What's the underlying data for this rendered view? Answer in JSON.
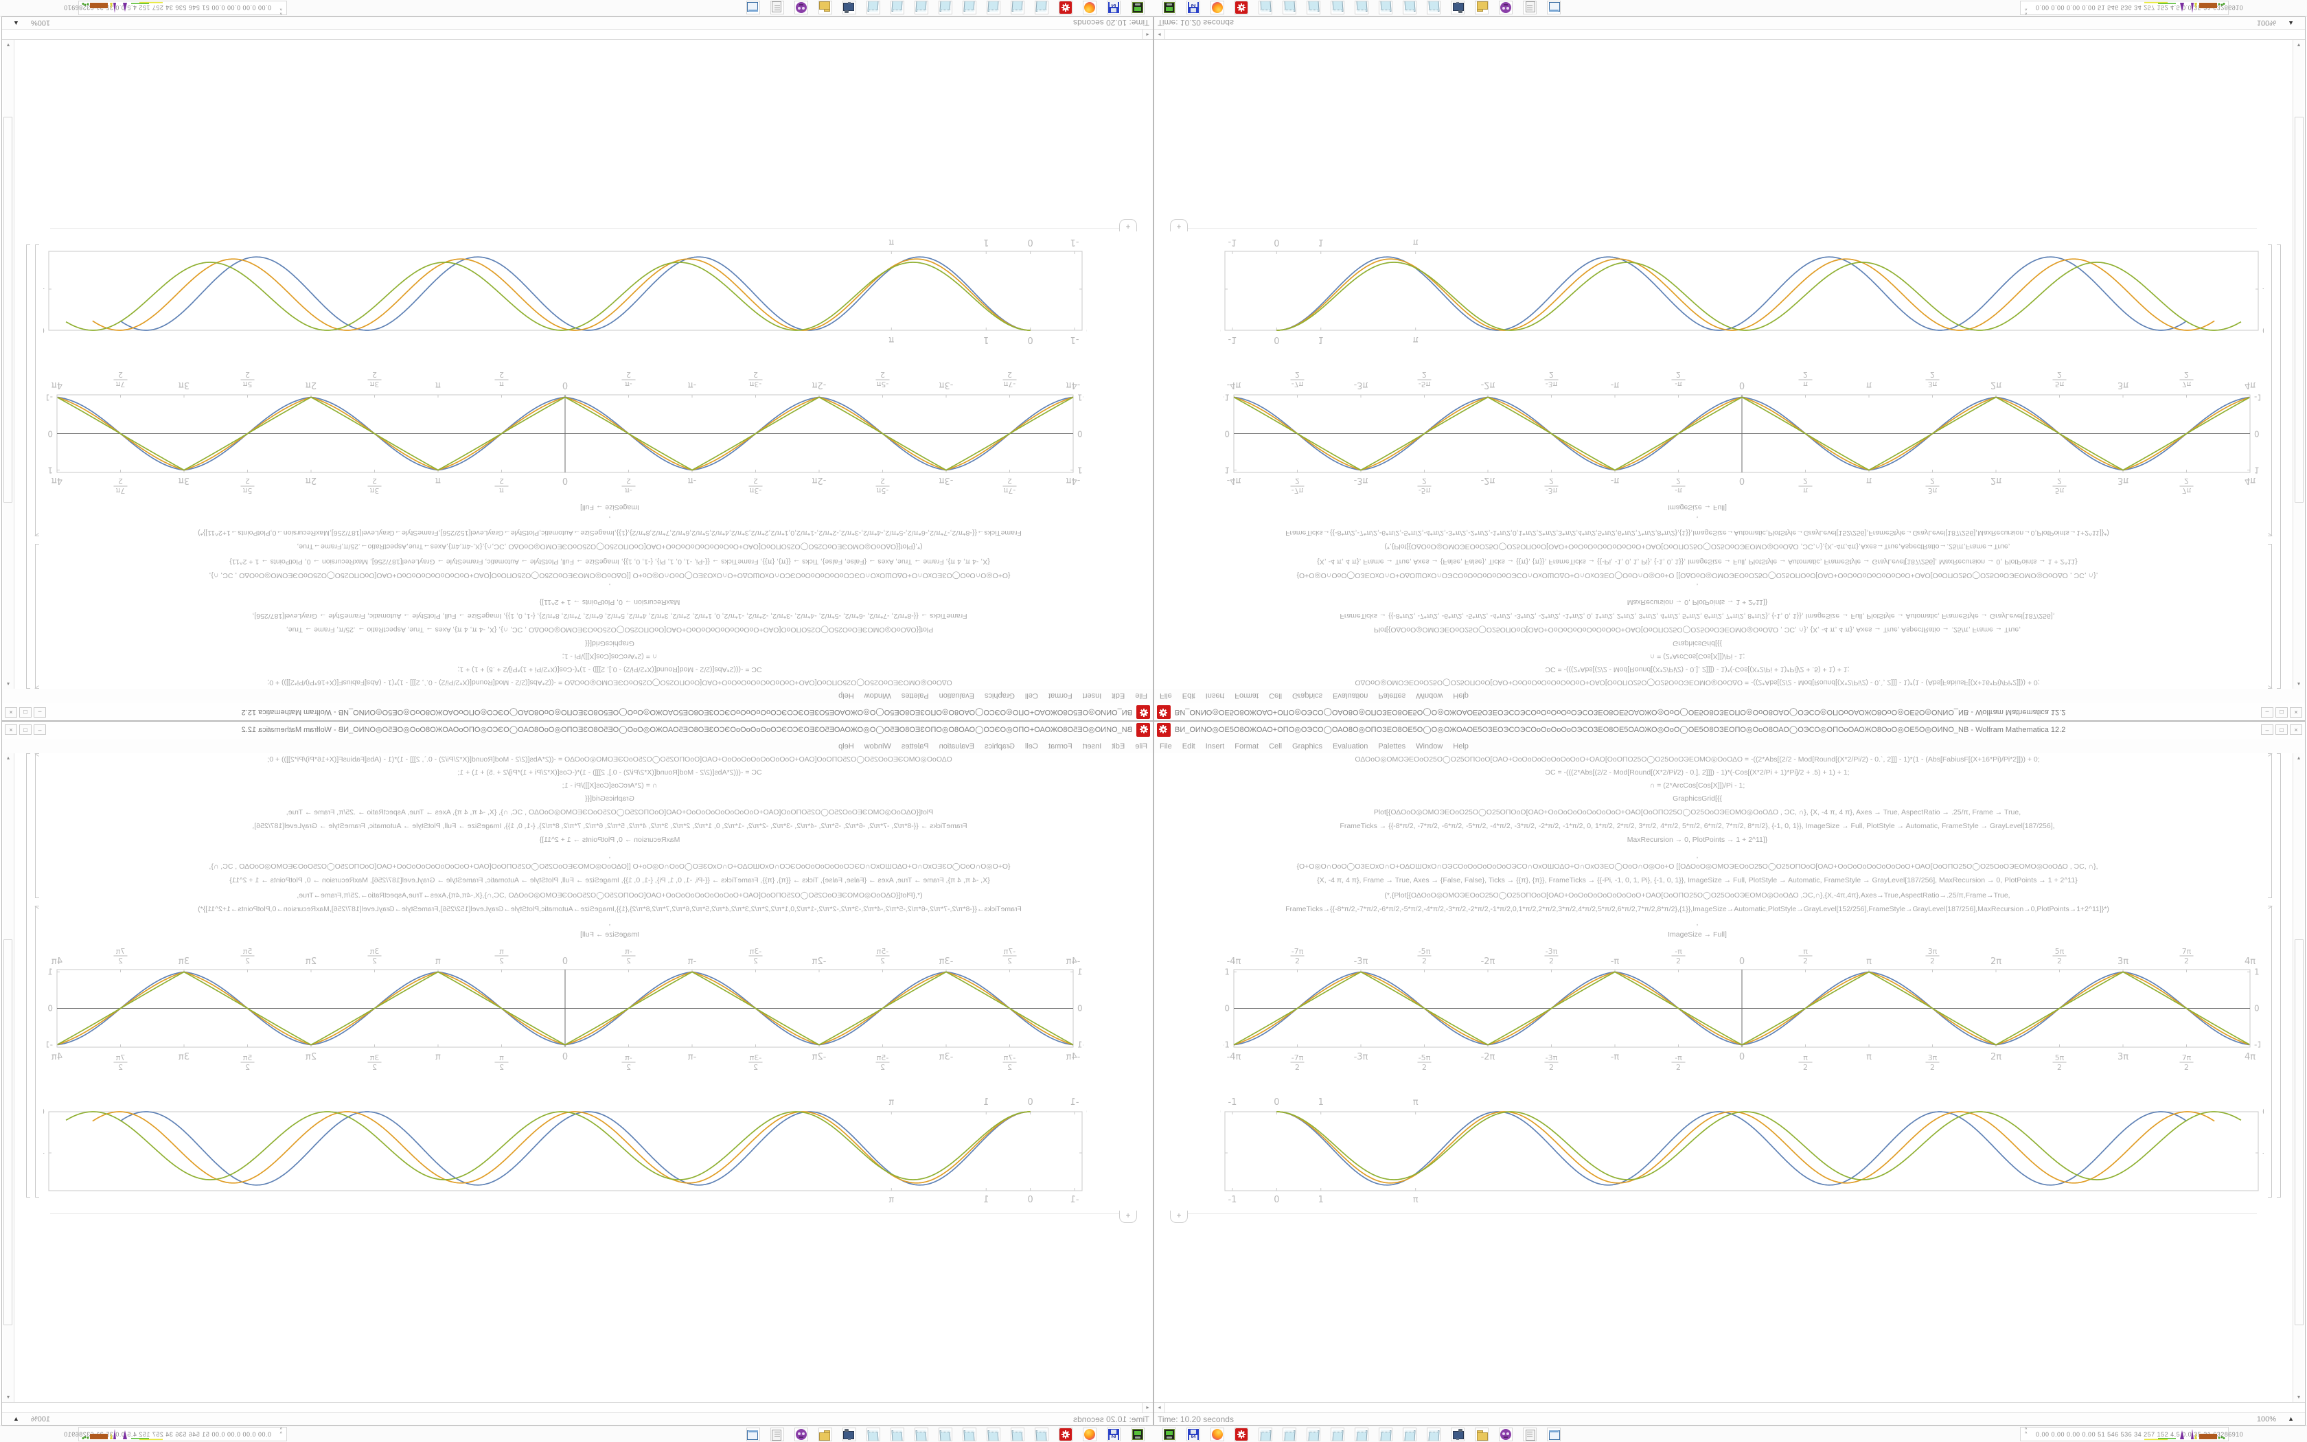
{
  "window": {
    "title": "ВИ_ОИNО◎ОЕ5О8ОЖОАО+ОПО◎ОЭСО◯ОАО8О◎ОПОЗЕО8ОЕ5О◯О◎ОЖОАОЕ5ОЗЕОЭСОЭСОоОоОоОоОЭСОЗЕО8ОЕ5ОАОЖО◎ОоО◯ОЕ5О8ОЗЕОПО◎ОоО8ОАО◯ОЭСО◎ОПОоОАОЖО8ОоО◎ОЕ5О◎ОИNО_NB - Wolfram Mathematica 12.2",
    "buttons": {
      "minimize": "–",
      "restore": "□",
      "close": "×"
    }
  },
  "menu": {
    "items": [
      "File",
      "Edit",
      "Insert",
      "Format",
      "Cell",
      "Graphics",
      "Evaluation",
      "Palettes",
      "Window",
      "Help"
    ]
  },
  "code_cell": {
    "lines": [
      "ΟΔΟοΟ◎ΟΜΟЭΕΟοΟ25Ο◯Ο25ΟΠΟοΟ[ΟΑΟ+ΟοΟοΟοΟοΟοΟοΟοΟ+ΟΑΟ[ΟοΟΠΟ25Ο◯Ο25ΟοΟЭΕΟΜΟ◎ΟοΟΔΟ  = -((2*Abs[(2/2 - Mod[Round[(X*2/Pi/2) - 0.`, 2]]] - 1)*(1 - (Abs[FabiusF[(X+16*Pi)/Pi*2]])) + 0;",
      "ƆC = -(((2*Abs[(2/2 - Mod[Round[(X*2/Pi/2) - 0.], 2]]]) - 1)*(-Cos[(X*2/Pi + 1)*Pi]/2 + .5) + 1) + 1;",
      "∩ = (2*ArcCos[Cos[X]])/Pi - 1;",
      "GraphicsGrid[{{",
      "Plot[{ΟΔΟοΟ◎ΟΜΟЭΕΟοΟ25Ο◯Ο25ΟΠΟοΟ[ΟΑΟ+ΟοΟοΟοΟοΟοΟοΟοΟ+ΟΑΟ[ΟοΟΠΟ25Ο◯Ο25ΟοΟЭΕΟΜΟ◎ΟοΟΔΟ , ƆC, ∩}, {X, -4 π, 4 π}, Axes → True, AspectRatio → .25/π, Frame → True,",
      "FrameTicks → {{-8*π/2, -7*π/2, -6*π/2, -5*π/2, -4*π/2, -3*π/2, -2*π/2, -1*π/2, 0, 1*π/2, 2*π/2, 3*π/2, 4*π/2, 5*π/2, 6*π/2, 7*π/2, 8*π/2}, {-1, 0, 1}}, ImageSize → Full, PlotStyle → Automatic, FrameStyle → GrayLevel[187/256],",
      "MaxRecursion → 0, PlotPoints → 1 + 2^11]}",
      ",",
      "{Ο+Ο◎Ο∩ΟοΟ◯ΟЗΕΟxΟ∩Ο+ΟΔΟШΟxΟ∩ΟЭСΟοΟοΟοΟοΟοΟЭСΟ∩ΟxΟШΟΔΟ+Ο∩ΟxΟЗΕΟ◯ΟοΟ∩Ο◎Οο+Ο  [[ΟΔΟοΟ◎ΟΜΟЭΕΟοΟ25Ο◯Ο25ΟΠΟοΟ[ΟΑΟ+ΟοΟοΟοΟοΟοΟοΟοΟ+ΟΑΟ[ΟοΟΠΟ25Ο◯Ο25ΟοΟЭΕΟΜΟ◎ΟοΟΔΟ   , ƆC, ∩},",
      "{X, -4 π, 4 π}, Frame → True, Axes → {False, False}, Ticks → {{π}, {π}}, FrameTicks → {{-Pi, -1, 0, 1, Pi}, {-1, 0, 1}}, ImageSize → Full, PlotStyle → Automatic, FrameStyle → GrayLevel[187/256], MaxRecursion → 0, PlotPoints → 1 + 2^11}",
      "(*,{Plot[{ΟΔΟοΟ◎ΟΜΟЭΕΟοΟ25Ο◯Ο25ΟΠΟοΟ[ΟΑΟ+ΟοΟοΟοΟοΟοΟοΟοΟ+ΟΑΟ[ΟοΟΠΟ25Ο◯Ο25ΟοΟЭΕΟΜΟ◎ΟοΟΔΟ ,ƆC,∩},{X,-4π,4π},Axes→True,AspectRatio→.25/π,Frame→True,",
      "FrameTicks→{{-8*π/2,-7*π/2,-6*π/2,-5*π/2,-4*π/2,-3*π/2,-2*π/2,-1*π/2,0,1*π/2,2*π/2,3*π/2,4*π/2,5*π/2,6*π/2,7*π/2,8*π/2},{1}},ImageSize→Automatic,PlotStyle→GrayLevel[152/256],FrameStyle→GrayLevel[187/256],MaxRecursion→0,PlotPoints→1+2^11]}*)",
      ",",
      "ImageSize → Full]"
    ]
  },
  "notebook": {
    "insert_plus": "+"
  },
  "chart_data": [
    {
      "type": "line",
      "name": "waveform-plot-top",
      "title": "",
      "xlabel": "",
      "ylabel": "",
      "xlim_pi": [
        -4,
        4
      ],
      "ylim": [
        -1.08,
        1.08
      ],
      "frame": true,
      "axes": true,
      "x_tick_labels": [
        "-4π",
        "-7π/2",
        "-3π",
        "-5π/2",
        "-2π",
        "-3π/2",
        "-π",
        "-π/2",
        "0",
        "π/2",
        "π",
        "3π/2",
        "2π",
        "5π/2",
        "3π",
        "7π/2",
        "4π"
      ],
      "y_tick_labels": [
        "1",
        "0",
        "-1"
      ],
      "frame_color": "#c9c9c9",
      "axis_color": "#6e6e6e",
      "label_color": "#b8b8b8",
      "series": [
        {
          "name": "smooth-wave",
          "color": "#5e81b5",
          "shape_mix_cos": 0.8
        },
        {
          "name": "mid-wave",
          "color": "#e09c24",
          "shape_mix_cos": 0.45
        },
        {
          "name": "triangle-wave",
          "color": "#8fb032",
          "shape_mix_cos": 0.04
        }
      ],
      "description": "periodic waves, trough -1 at x=0 and even multiples of pi, peak +1 at odd multiples of pi, ticks every pi/2 on top and bottom frame edges"
    },
    {
      "type": "line",
      "name": "waveform-plot-bottom",
      "title": "",
      "xlabel": "",
      "ylabel": "",
      "xlim": [
        -1.17,
        22.2
      ],
      "ylim": [
        -1.92,
        0.02
      ],
      "frame": true,
      "axes": false,
      "x_ticks": [
        {
          "x": -1,
          "label": "-1"
        },
        {
          "x": 0,
          "label": "0"
        },
        {
          "x": 1,
          "label": "1"
        },
        {
          "x": 3.14159,
          "label": "π"
        }
      ],
      "y_ticks": [
        {
          "y": 0,
          "label": "0"
        },
        {
          "y": -1,
          "label": "-1"
        }
      ],
      "frame_color": "#c9c9c9",
      "label_color": "#b8b8b8",
      "series": [
        {
          "name": "series-blue",
          "color": "#5e81b5",
          "period": 5.0,
          "depth": 1.78,
          "start_x": 0,
          "periods_drawn": 4.12
        },
        {
          "name": "series-orange",
          "color": "#e09c24",
          "period": 5.15,
          "depth": 1.73,
          "start_x": 0,
          "periods_drawn": 4.12
        },
        {
          "name": "series-green",
          "color": "#8fb032",
          "period": 5.3,
          "depth": 1.65,
          "start_x": 0,
          "periods_drawn": 4.12
        }
      ],
      "description": "raised-cosine dips y = -(depth/2)*(1-cos(2*pi*x/period)) starting at the origin, slightly different periods so curves drift apart"
    }
  ],
  "scrollbars": {
    "h_left_arrow": "◂",
    "v_up_arrow": "▴",
    "v_down_arrow": "▾"
  },
  "statusbar": {
    "time_text": "Time: 10.20 seconds",
    "zoom": "100%",
    "zoom_arrow": "▲"
  },
  "taskbar": {
    "items": [
      {
        "icon": "spectrum-emulator"
      },
      {
        "icon": "floppy-64",
        "label": "64"
      },
      {
        "icon": "firefox"
      },
      {
        "icon": "wolfram-gear"
      },
      {
        "icon": "notepad"
      },
      {
        "icon": "notepad"
      },
      {
        "icon": "notepad"
      },
      {
        "icon": "notepad"
      },
      {
        "icon": "notepad"
      },
      {
        "icon": "notepad"
      },
      {
        "icon": "notepad"
      },
      {
        "icon": "notepad"
      },
      {
        "icon": "monitor-camera"
      },
      {
        "icon": "folder"
      },
      {
        "icon": "gimp-purple"
      },
      {
        "icon": "printer-doc"
      },
      {
        "icon": "blue-window"
      }
    ],
    "tray": {
      "chevron": "^\n^",
      "text": "0.00 0.00 0.00 0.00   51   546 536   34   257   152   4.5   0.0   35    31  63286910"
    }
  }
}
